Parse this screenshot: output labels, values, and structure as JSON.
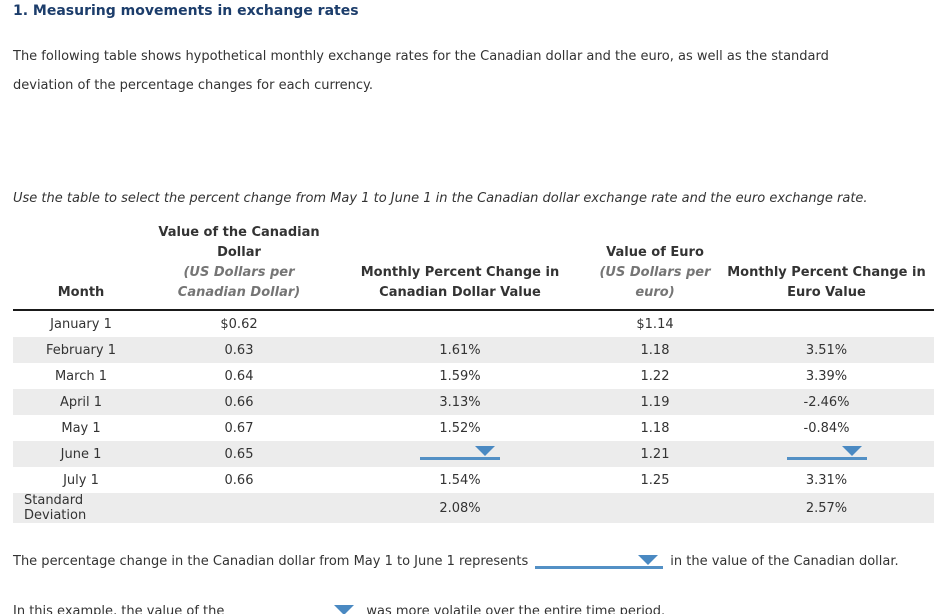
{
  "page": {
    "title": "1. Measuring movements in exchange rates",
    "intro": "The following table shows hypothetical monthly exchange rates for the Canadian dollar and the euro, as well as the standard deviation of the percentage changes for each currency.",
    "instruction": "Use the table to select the percent change from May 1 to June 1 in the Canadian dollar exchange rate and the euro exchange rate."
  },
  "table": {
    "headers": {
      "month": "Month",
      "cad_title": "Value of the Canadian Dollar",
      "cad_sub": "(US Dollars per Canadian Dollar)",
      "cad_pct": "Monthly Percent Change in Canadian Dollar Value",
      "euro_title": "Value of Euro",
      "euro_sub": "(US Dollars per euro)",
      "euro_pct": "Monthly Percent Change in Euro Value"
    },
    "rows": [
      {
        "month": "January 1",
        "cad_value": "$0.62",
        "cad_pct": "",
        "euro_value": "$1.14",
        "euro_pct": ""
      },
      {
        "month": "February 1",
        "cad_value": "0.63",
        "cad_pct": "1.61%",
        "euro_value": "1.18",
        "euro_pct": "3.51%"
      },
      {
        "month": "March 1",
        "cad_value": "0.64",
        "cad_pct": "1.59%",
        "euro_value": "1.22",
        "euro_pct": "3.39%"
      },
      {
        "month": "April 1",
        "cad_value": "0.66",
        "cad_pct": "3.13%",
        "euro_value": "1.19",
        "euro_pct": "-2.46%"
      },
      {
        "month": "May 1",
        "cad_value": "0.67",
        "cad_pct": "1.52%",
        "euro_value": "1.18",
        "euro_pct": "-0.84%"
      },
      {
        "month": "June 1",
        "cad_value": "0.65",
        "cad_pct": "",
        "euro_value": "1.21",
        "euro_pct": ""
      },
      {
        "month": "July 1",
        "cad_value": "0.66",
        "cad_pct": "1.54%",
        "euro_value": "1.25",
        "euro_pct": "3.31%"
      },
      {
        "month": "Standard Deviation",
        "cad_value": "",
        "cad_pct": "2.08%",
        "euro_value": "",
        "euro_pct": "2.57%"
      }
    ],
    "dropdown_cells": {
      "june_cad_pct": "empty",
      "june_euro_pct": "empty"
    }
  },
  "questions": {
    "q1_before": "The percentage change in the Canadian dollar from May 1 to June 1 represents",
    "q1_after": "in the value of the Canadian dollar.",
    "q2_before": "In this example, the value of the",
    "q2_after": "was more volatile over the entire time period."
  },
  "icons": {
    "dropdown_arrow": "chevron-down"
  },
  "colors": {
    "title_navy": "#1c3d6b",
    "accent_blue": "#5390c5",
    "arrow_blue": "#4a89c2",
    "row_stripe": "#ececec",
    "header_border": "#1a1a1a",
    "subheader_gray": "#757575",
    "text": "#333333"
  }
}
